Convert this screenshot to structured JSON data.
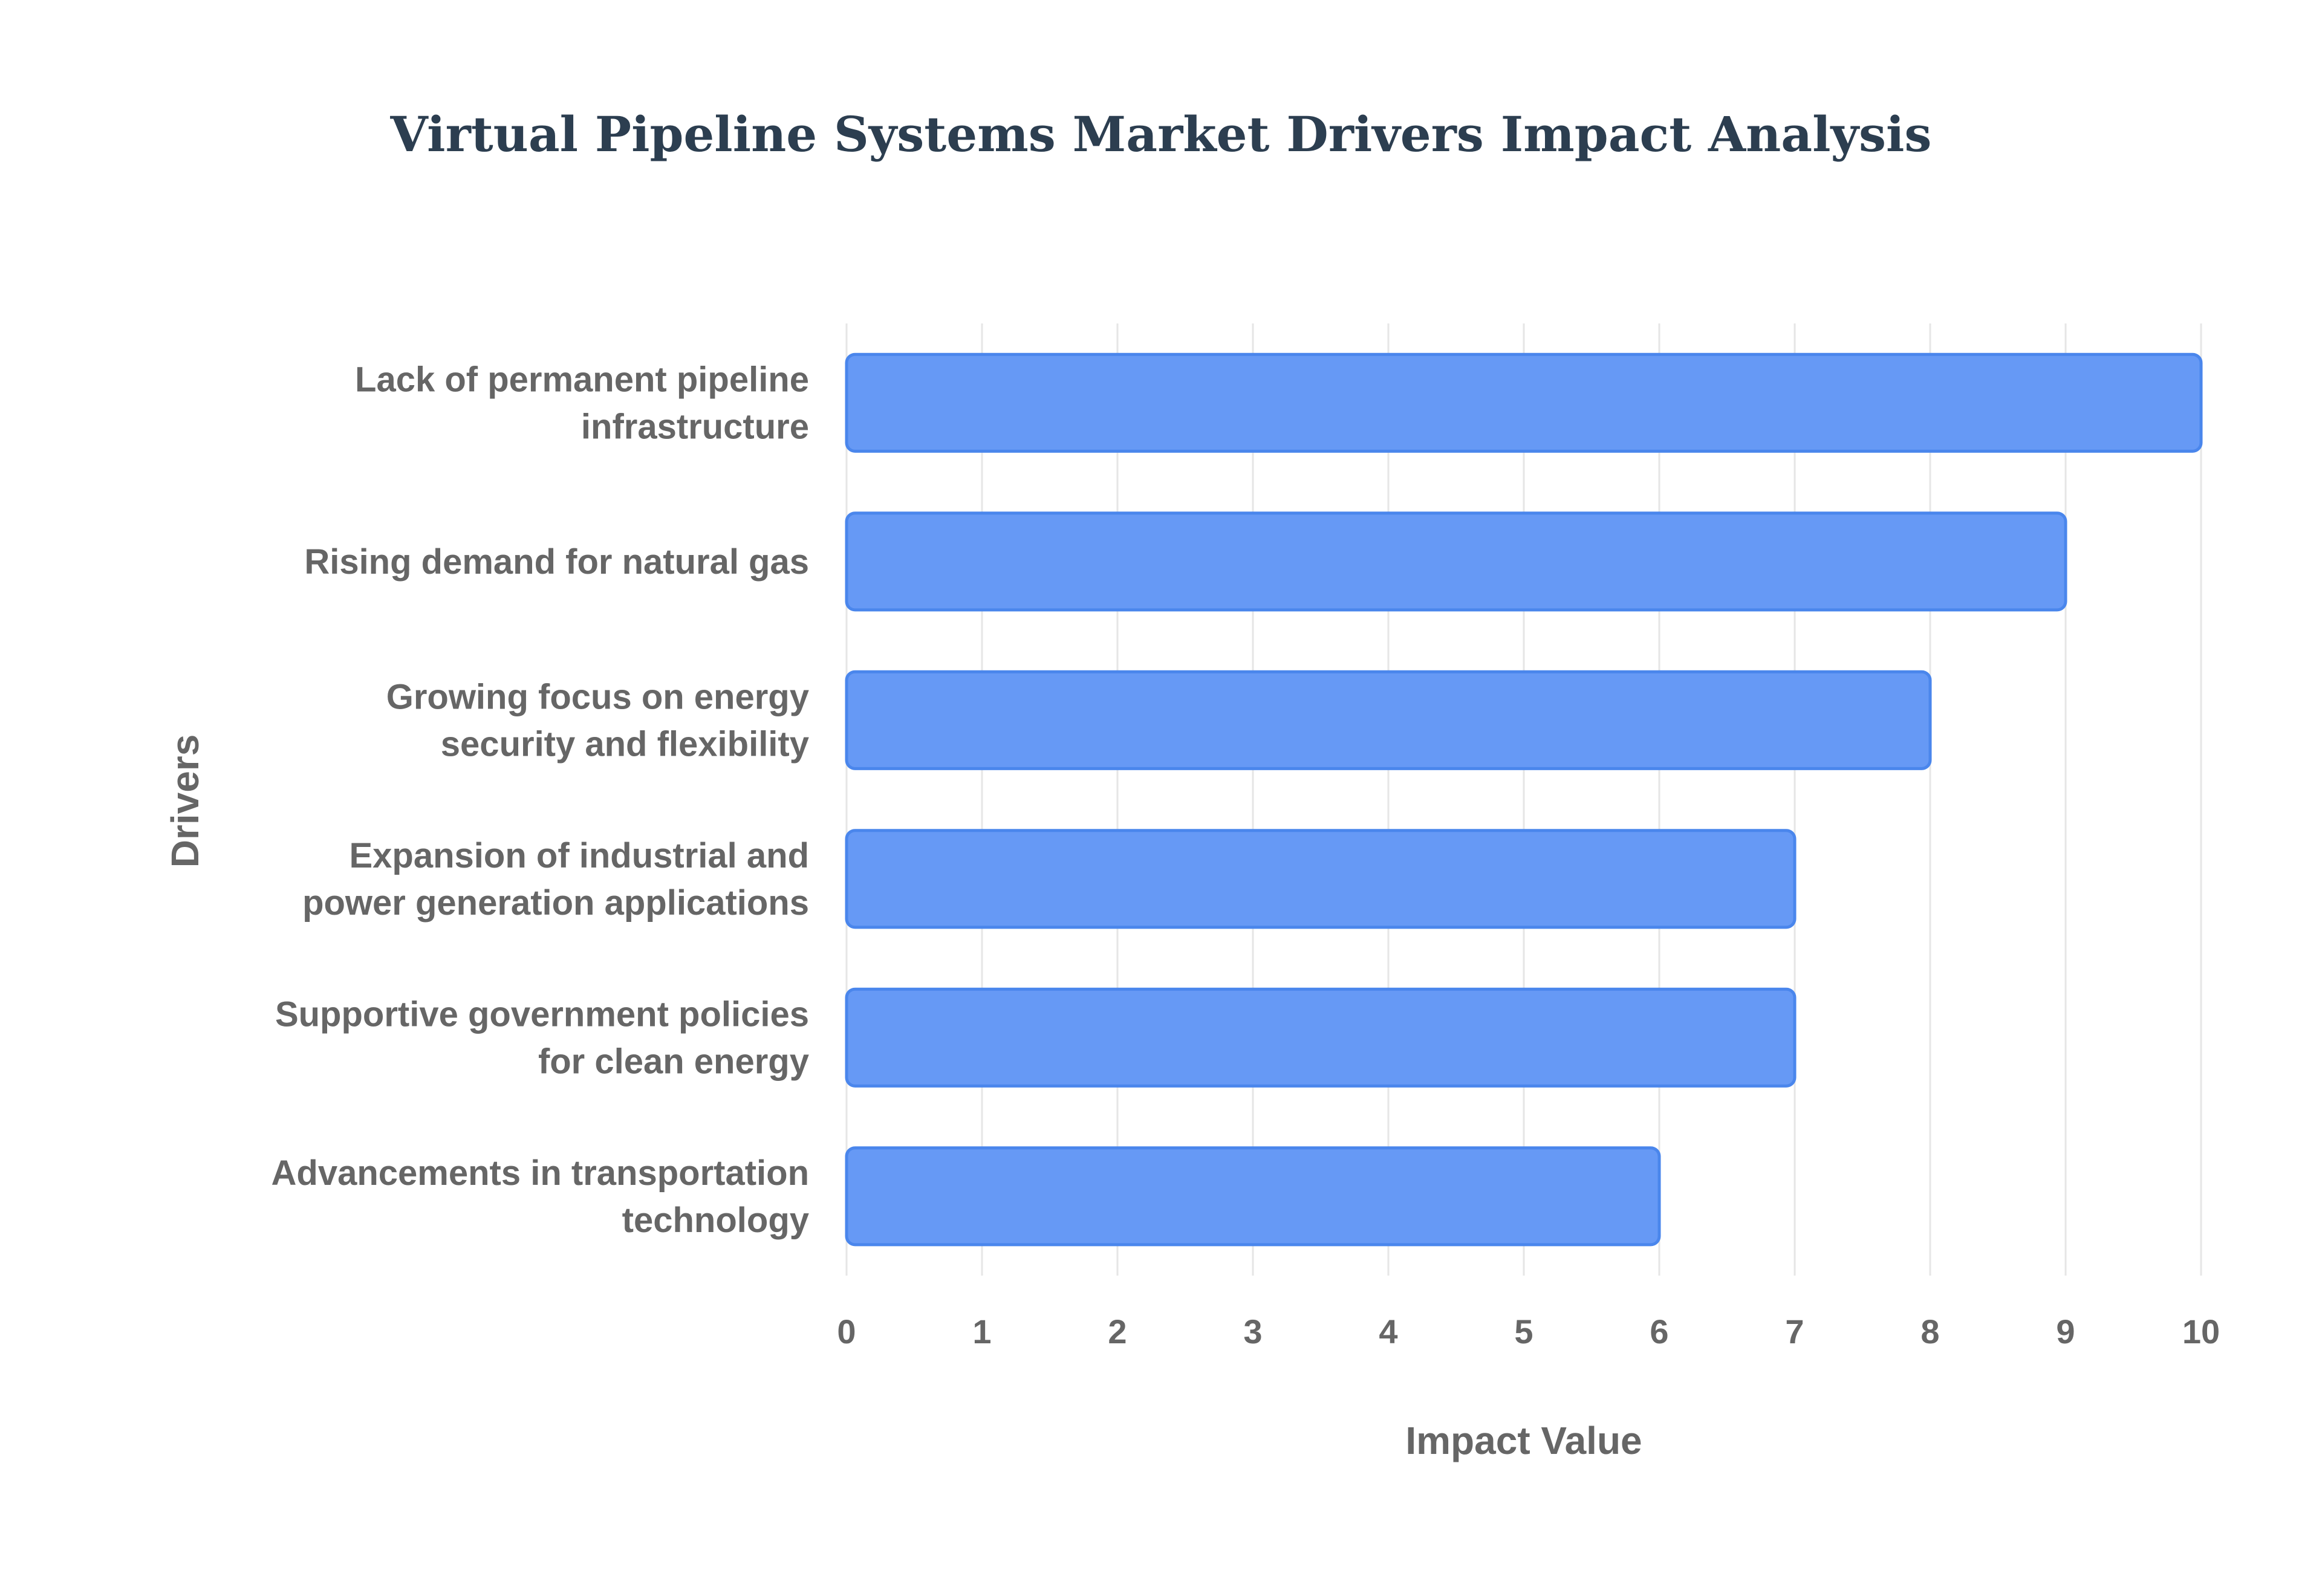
{
  "chart_data": {
    "type": "bar",
    "orientation": "horizontal",
    "title": "Virtual Pipeline Systems Market Drivers Impact Analysis",
    "xlabel": "Impact Value",
    "ylabel": "Drivers",
    "categories": [
      [
        "Lack of permanent pipeline",
        "infrastructure"
      ],
      [
        "Rising demand for natural gas"
      ],
      [
        "Growing focus on energy",
        "security and flexibility"
      ],
      [
        "Expansion of industrial and",
        "power generation applications"
      ],
      [
        "Supportive government policies",
        "for clean energy"
      ],
      [
        "Advancements in transportation",
        "technology"
      ]
    ],
    "values": [
      10,
      9,
      8,
      7,
      7,
      6
    ],
    "xlim": [
      0,
      10
    ],
    "xticks": [
      "0",
      "1",
      "2",
      "3",
      "4",
      "5",
      "6",
      "7",
      "8",
      "9",
      "10"
    ],
    "grid": true,
    "legend": "none",
    "colors": {
      "bar_fill": "#6699f5",
      "bar_edge": "#4a86ec",
      "title": "#2c3e50",
      "text": "#666666"
    }
  }
}
